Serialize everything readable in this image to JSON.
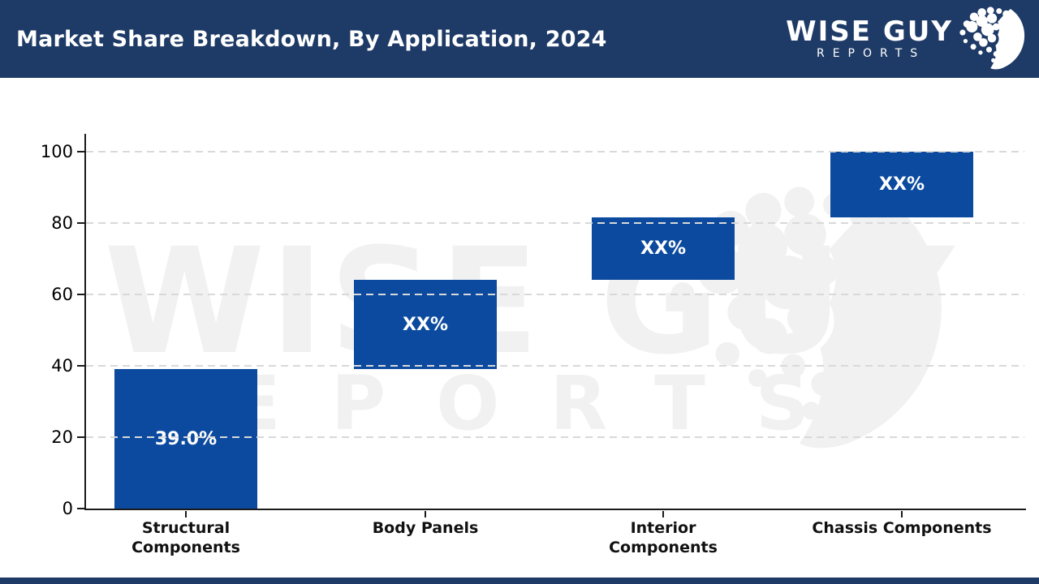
{
  "header": {
    "title": "Market Share Breakdown, By Application, 2024",
    "logo": {
      "line1": "WISE GUY",
      "line2": "REPORTS"
    }
  },
  "watermark": {
    "line1": "WISE GUY",
    "line2": "REPORTS"
  },
  "chart_data": {
    "type": "bar",
    "subtype": "waterfall-floating-bars",
    "title": "Market Share Breakdown, By Application, 2024",
    "categories": [
      "Structural\nComponents",
      "Body Panels",
      "Interior\nComponents",
      "Chassis Components"
    ],
    "segments": [
      {
        "category": "Structural Components",
        "start": 0,
        "end": 39,
        "label": "39.0%"
      },
      {
        "category": "Body Panels",
        "start": 39,
        "end": 64,
        "label": "XX%"
      },
      {
        "category": "Interior Components",
        "start": 64,
        "end": 81.5,
        "label": "XX%"
      },
      {
        "category": "Chassis Components",
        "start": 81.5,
        "end": 100,
        "label": "XX%"
      }
    ],
    "xlabel": "",
    "ylabel": "",
    "ylim": [
      0,
      100
    ],
    "yticks": [
      0,
      20,
      40,
      60,
      80,
      100
    ],
    "grid": true,
    "grid_style": "dashed",
    "grid_above_bars": true,
    "legend": false,
    "colors": {
      "bar": "#0b4a9f",
      "header": "#1e3a66",
      "grid": "#d9d9d9",
      "axis": "#1a1a1a",
      "watermark": "#f1f1f1",
      "bar_label": "#ffffff",
      "title_text": "#ffffff"
    }
  }
}
